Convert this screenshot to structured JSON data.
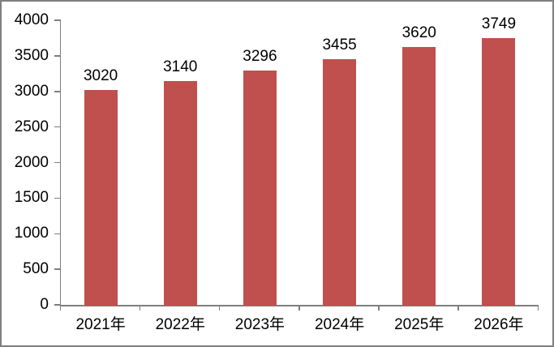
{
  "chart_data": {
    "type": "bar",
    "categories": [
      "2021年",
      "2022年",
      "2023年",
      "2024年",
      "2025年",
      "2026年"
    ],
    "values": [
      3020,
      3140,
      3296,
      3455,
      3620,
      3749
    ],
    "data_labels": [
      "3020",
      "3140",
      "3296",
      "3455",
      "3620",
      "3749"
    ],
    "title": "",
    "xlabel": "",
    "ylabel": "",
    "ylim": [
      0,
      4000
    ],
    "yticks": [
      0,
      500,
      1000,
      1500,
      2000,
      2500,
      3000,
      3500,
      4000
    ],
    "ytick_labels": [
      "0",
      "500",
      "1000",
      "1500",
      "2000",
      "2500",
      "3000",
      "3500",
      "4000"
    ],
    "grid": false,
    "legend": "none",
    "bar_color": "#c0504d",
    "axis_color": "#7f7f7f",
    "text_color": "#000000",
    "background_color": "#ffffff",
    "frame_border_color": "#7f7f7f"
  }
}
